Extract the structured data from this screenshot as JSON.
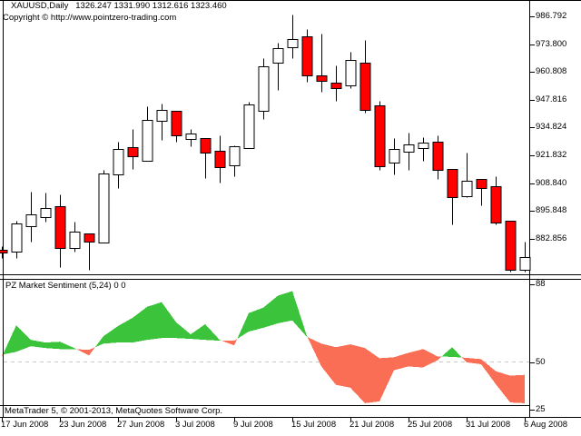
{
  "header": {
    "symbol_line": "XAUUSD,Daily   1326.247 1331.990 1312.616 1323.460",
    "copyright": "Copyright © http://www.pointzero-trading.com"
  },
  "indicator_pane": {
    "title": "PZ Market Sentiment (5,24) 0 0"
  },
  "footer": {
    "platform": "MetaTrader 5, © 2001-2013, MetaQuotes Software Corp."
  },
  "colors": {
    "background": "#FFFFFF",
    "foreground": "#000000",
    "bull_candle": "#FFFFFF",
    "bear_candle": "#FF0000",
    "candle_outline": "#000000",
    "sentiment_bull": "#3BC43B",
    "sentiment_bear": "#FA6E55",
    "level_line": "#C8C8C8"
  },
  "chart_data": [
    {
      "type": "candlestick",
      "title": "XAUUSD,Daily",
      "y_axis": {
        "ticks": [
          {
            "label": "986.792",
            "value": 986.792
          },
          {
            "label": "973.800",
            "value": 973.8
          },
          {
            "label": "960.808",
            "value": 960.808
          },
          {
            "label": "947.816",
            "value": 947.816
          },
          {
            "label": "934.824",
            "value": 934.824
          },
          {
            "label": "921.832",
            "value": 921.832
          },
          {
            "label": "908.840",
            "value": 908.84
          },
          {
            "label": "895.848",
            "value": 895.848
          },
          {
            "label": "882.856",
            "value": 882.856
          }
        ]
      },
      "x_axis": {
        "ticks": [
          {
            "label": "17 Jun 2008",
            "bar": -1
          },
          {
            "label": "23 Jun 2008",
            "bar": 3
          },
          {
            "label": "27 Jun 2008",
            "bar": 7
          },
          {
            "label": "3 Jul 2008",
            "bar": 11
          },
          {
            "label": "9 Jul 2008",
            "bar": 15
          },
          {
            "label": "15 Jul 2008",
            "bar": 19
          },
          {
            "label": "21 Jul 2008",
            "bar": 23
          },
          {
            "label": "25 Jul 2008",
            "bar": 27
          },
          {
            "label": "31 Jul 2008",
            "bar": 31
          },
          {
            "label": "6 Aug 2008",
            "bar": 35
          }
        ]
      },
      "partial_first": {
        "o": 877.9,
        "h": 879.5,
        "l": 874.0,
        "c": 876.7
      },
      "candles": [
        {
          "o": 876.9,
          "h": 891.3,
          "l": 874.0,
          "c": 890.1
        },
        {
          "o": 888.8,
          "h": 904.9,
          "l": 881.6,
          "c": 894.3
        },
        {
          "o": 893.0,
          "h": 904.5,
          "l": 890.9,
          "c": 897.3
        },
        {
          "o": 898.1,
          "h": 903.6,
          "l": 869.7,
          "c": 878.6
        },
        {
          "o": 878.6,
          "h": 890.9,
          "l": 876.9,
          "c": 886.2
        },
        {
          "o": 885.4,
          "h": 885.4,
          "l": 868.4,
          "c": 881.6
        },
        {
          "o": 881.2,
          "h": 915.1,
          "l": 881.2,
          "c": 913.4
        },
        {
          "o": 913.0,
          "h": 928.3,
          "l": 906.6,
          "c": 924.9
        },
        {
          "o": 925.7,
          "h": 934.2,
          "l": 915.5,
          "c": 921.5
        },
        {
          "o": 919.3,
          "h": 944.8,
          "l": 919.3,
          "c": 938.4
        },
        {
          "o": 938.0,
          "h": 946.1,
          "l": 929.1,
          "c": 943.1
        },
        {
          "o": 942.7,
          "h": 942.7,
          "l": 928.3,
          "c": 931.2
        },
        {
          "o": 929.5,
          "h": 934.2,
          "l": 926.1,
          "c": 932.1
        },
        {
          "o": 929.9,
          "h": 929.9,
          "l": 911.3,
          "c": 923.2
        },
        {
          "o": 924.0,
          "h": 931.2,
          "l": 909.2,
          "c": 916.4
        },
        {
          "o": 917.2,
          "h": 926.5,
          "l": 912.1,
          "c": 926.1
        },
        {
          "o": 925.3,
          "h": 946.9,
          "l": 925.3,
          "c": 945.6
        },
        {
          "o": 942.7,
          "h": 967.3,
          "l": 938.9,
          "c": 963.5
        },
        {
          "o": 965.2,
          "h": 974.5,
          "l": 952.4,
          "c": 971.9
        },
        {
          "o": 972.4,
          "h": 987.6,
          "l": 967.3,
          "c": 976.2
        },
        {
          "o": 977.5,
          "h": 980.9,
          "l": 956.3,
          "c": 959.2
        },
        {
          "o": 959.2,
          "h": 978.7,
          "l": 951.6,
          "c": 956.7
        },
        {
          "o": 955.8,
          "h": 963.9,
          "l": 947.3,
          "c": 953.3
        },
        {
          "o": 954.6,
          "h": 970.2,
          "l": 953.3,
          "c": 966.4
        },
        {
          "o": 965.2,
          "h": 975.8,
          "l": 941.8,
          "c": 943.1
        },
        {
          "o": 945.2,
          "h": 947.3,
          "l": 915.1,
          "c": 916.8
        },
        {
          "o": 918.5,
          "h": 929.9,
          "l": 913.0,
          "c": 924.9
        },
        {
          "o": 923.6,
          "h": 932.5,
          "l": 915.1,
          "c": 927.0
        },
        {
          "o": 925.3,
          "h": 930.4,
          "l": 919.3,
          "c": 927.8
        },
        {
          "o": 928.3,
          "h": 931.2,
          "l": 910.9,
          "c": 915.1
        },
        {
          "o": 915.5,
          "h": 915.5,
          "l": 889.6,
          "c": 902.4
        },
        {
          "o": 902.8,
          "h": 923.2,
          "l": 902.4,
          "c": 910.0
        },
        {
          "o": 910.9,
          "h": 910.9,
          "l": 898.5,
          "c": 906.6
        },
        {
          "o": 907.5,
          "h": 912.1,
          "l": 889.6,
          "c": 890.5
        },
        {
          "o": 891.3,
          "h": 891.3,
          "l": 867.6,
          "c": 868.4
        },
        {
          "o": 868.4,
          "h": 881.6,
          "l": 867.6,
          "c": 874.4
        }
      ]
    },
    {
      "type": "area",
      "name": "PZ Market Sentiment (5,24)",
      "legend": "fill is green when sentiment > signal, red when below",
      "y_axis": {
        "ticks": [
          {
            "label": "88",
            "value": 88
          },
          {
            "label": "50",
            "value": 50
          },
          {
            "label": "25",
            "value": 25
          }
        ]
      },
      "levels": [
        50
      ],
      "start_bar": -1,
      "series": [
        {
          "name": "sentiment",
          "values": [
            52.5,
            68.0,
            60.8,
            59.5,
            59.9,
            56.8,
            53.2,
            62.6,
            67.6,
            71.6,
            77.0,
            79.3,
            69.4,
            63.5,
            68.5,
            60.8,
            58.1,
            73.9,
            76.6,
            82.4,
            84.7,
            62.8,
            47.8,
            38.8,
            37.4,
            29.8,
            30.7,
            46.0,
            47.8,
            47.3,
            50.9,
            57.2,
            49.8,
            48.9,
            39.2,
            30.2,
            29.8
          ]
        },
        {
          "name": "signal",
          "values": [
            53.5,
            55.0,
            57.7,
            56.8,
            56.3,
            56.3,
            55.9,
            59.0,
            59.5,
            59.5,
            60.8,
            61.7,
            61.7,
            61.3,
            60.8,
            60.4,
            60.4,
            64.9,
            66.7,
            68.9,
            70.3,
            62.3,
            59.0,
            57.2,
            58.6,
            56.8,
            51.8,
            52.3,
            54.5,
            56.3,
            52.7,
            52.5,
            52.0,
            51.4,
            45.5,
            43.3,
            43.7
          ]
        }
      ]
    }
  ]
}
